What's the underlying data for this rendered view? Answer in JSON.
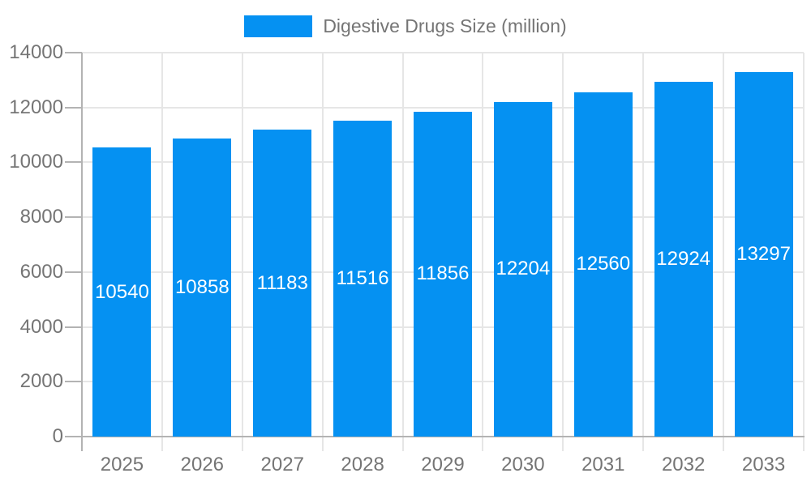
{
  "legend": {
    "label": "Digestive Drugs Size (million)"
  },
  "colors": {
    "bar": "#0591f2",
    "value_text": "#ffffff",
    "axis_text": "#757575",
    "axis_line": "#b3b3b3",
    "gridline": "#e6e6e6"
  },
  "chart_data": {
    "type": "bar",
    "title": "Digestive Drugs Size (million)",
    "categories": [
      "2025",
      "2026",
      "2027",
      "2028",
      "2029",
      "2030",
      "2031",
      "2032",
      "2033"
    ],
    "values": [
      10540,
      10858,
      11183,
      11516,
      11856,
      12204,
      12560,
      12924,
      13297
    ],
    "xlabel": "",
    "ylabel": "",
    "ylim": [
      0,
      14000
    ],
    "ytick_step": 2000,
    "ytick_labels": [
      "0",
      "2000",
      "4000",
      "6000",
      "8000",
      "10000",
      "12000",
      "14000"
    ],
    "grid": true,
    "legend_position": "top",
    "bar_value_labels": true
  }
}
